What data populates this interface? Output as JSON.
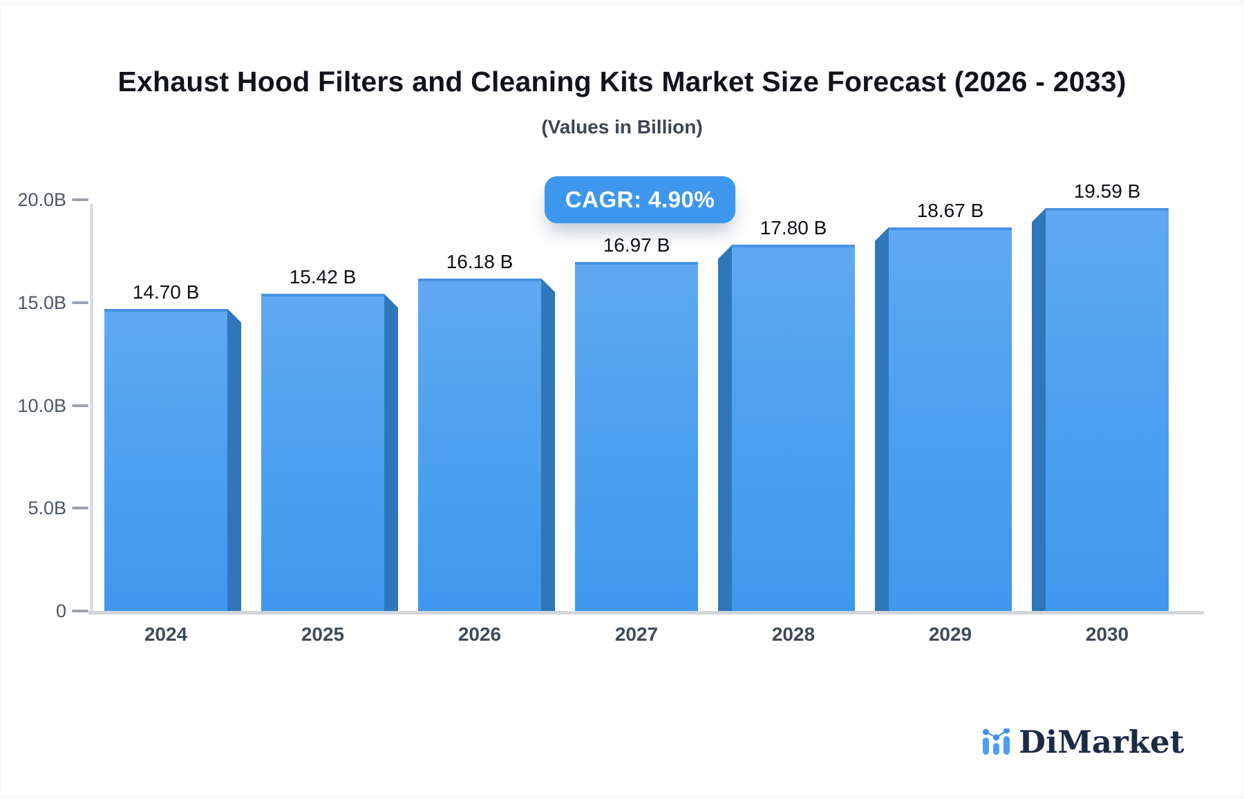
{
  "title": "Exhaust Hood Filters and Cleaning Kits Market Size Forecast (2026 - 2033)",
  "subtitle": "(Values in Billion)",
  "badge": {
    "label": "CAGR: 4.90%",
    "color": "#3e97ee",
    "text_color": "#ffffff"
  },
  "chart_data": {
    "type": "bar",
    "categories": [
      "2024",
      "2025",
      "2026",
      "2027",
      "2028",
      "2029",
      "2030"
    ],
    "values": [
      14.7,
      15.42,
      16.18,
      16.97,
      17.8,
      18.67,
      19.59
    ],
    "value_labels": [
      "14.70 B",
      "15.42 B",
      "16.18 B",
      "16.97 B",
      "17.80 B",
      "18.67 B",
      "19.59 B"
    ],
    "title": "Exhaust Hood Filters and Cleaning Kits Market Size Forecast (2026 - 2033)",
    "xlabel": "",
    "ylabel": "",
    "ylim": [
      0,
      20
    ],
    "ytick_values": [
      0,
      5,
      10,
      15,
      20
    ],
    "ytick_labels": [
      "0",
      "5.0B",
      "10.0B",
      "15.0B",
      "20.0B"
    ],
    "grid": false,
    "legend": false,
    "bar_color": "#459fef",
    "bar_edge_color": "#2e77ba"
  },
  "logo": {
    "text": "DiMarket",
    "icon": "mini-bar-chart-logo-icon",
    "icon_color": "#49a0f3",
    "text_color": "#1b2b45"
  }
}
